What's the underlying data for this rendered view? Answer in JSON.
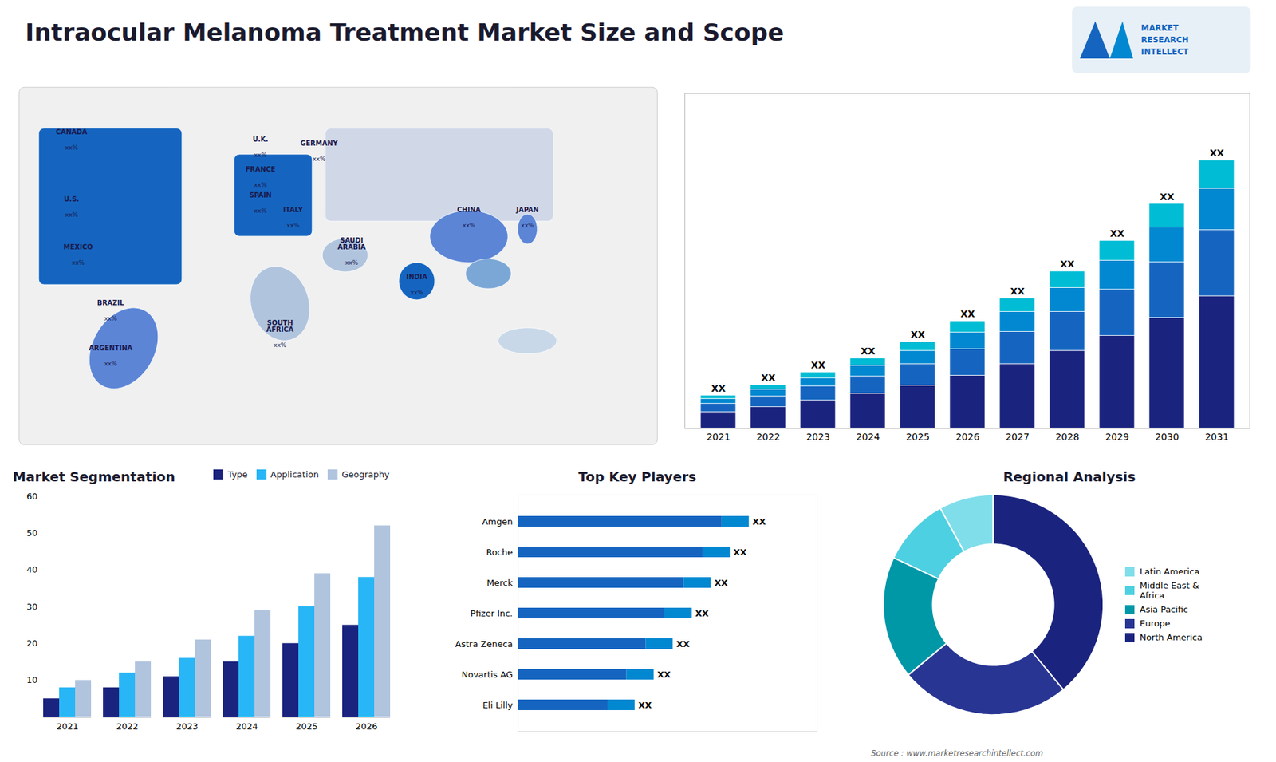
{
  "title": "Intraocular Melanoma Treatment Market Size and Scope",
  "logo_text": "MARKET\nRESEARCH\nINTELLECT",
  "source": "Source : www.marketresearchintellect.com",
  "chart_data": [
    {
      "type": "map",
      "categories": [
        "CANADA",
        "U.S.",
        "MEXICO",
        "BRAZIL",
        "ARGENTINA",
        "U.K.",
        "FRANCE",
        "SPAIN",
        "GERMANY",
        "ITALY",
        "SAUDI\nARABIA",
        "SOUTH\nAFRICA",
        "CHINA",
        "INDIA",
        "JAPAN"
      ],
      "value_labels": [
        "xx%",
        "xx%",
        "xx%",
        "xx%",
        "xx%",
        "xx%",
        "xx%",
        "xx%",
        "xx%",
        "xx%",
        "xx%",
        "xx%",
        "xx%",
        "xx%",
        "xx%"
      ]
    },
    {
      "type": "bar",
      "stacked": true,
      "categories": [
        "2021",
        "2022",
        "2023",
        "2024",
        "2025",
        "2026",
        "2027",
        "2028",
        "2029",
        "2030",
        "2031"
      ],
      "series": [
        {
          "color": "#1a237e",
          "values": [
            1.0,
            1.3,
            1.7,
            2.1,
            2.6,
            3.2,
            3.9,
            4.7,
            5.6,
            6.7,
            8.0
          ]
        },
        {
          "color": "#1565c0",
          "values": [
            0.5,
            0.65,
            0.85,
            1.05,
            1.3,
            1.6,
            1.95,
            2.35,
            2.8,
            3.35,
            4.0
          ]
        },
        {
          "color": "#0288d1",
          "values": [
            0.3,
            0.4,
            0.5,
            0.65,
            0.8,
            1.0,
            1.2,
            1.45,
            1.75,
            2.1,
            2.5
          ]
        },
        {
          "color": "#00bcd4",
          "values": [
            0.2,
            0.27,
            0.35,
            0.44,
            0.54,
            0.68,
            0.82,
            0.99,
            1.19,
            1.43,
            1.7
          ]
        }
      ],
      "value_labels": [
        "XX",
        "XX",
        "XX",
        "XX",
        "XX",
        "XX",
        "XX",
        "XX",
        "XX",
        "XX",
        "XX"
      ],
      "ylim": [
        0,
        20.25
      ],
      "tick_labels": "x"
    },
    {
      "type": "bar",
      "title": "Market Segmentation",
      "categories": [
        "2021",
        "2022",
        "2023",
        "2024",
        "2025",
        "2026"
      ],
      "series": [
        {
          "name": "Type",
          "color": "#1a237e",
          "values": [
            5,
            8,
            11,
            15,
            20,
            25
          ]
        },
        {
          "name": "Application",
          "color": "#29b6f6",
          "values": [
            8,
            12,
            16,
            22,
            30,
            38
          ]
        },
        {
          "name": "Geography",
          "color": "#b0c4de",
          "values": [
            10,
            15,
            21,
            29,
            39,
            52
          ]
        }
      ],
      "ylim": [
        0,
        60
      ],
      "yticks": [
        {
          "value": 0,
          "label": ""
        },
        10,
        20,
        30,
        40,
        50,
        60
      ],
      "legend": "upper right"
    },
    {
      "type": "bar",
      "title": "Top Key Players",
      "orientation": "horizontal",
      "stacked": true,
      "categories": [
        "Amgen",
        "Roche",
        "Merck",
        "Pfizer Inc.",
        "Astra Zeneca",
        "Novartis AG",
        "Eli Lilly"
      ],
      "series": [
        {
          "color": "#1565c0",
          "values": [
            0.75,
            0.68,
            0.61,
            0.54,
            0.47,
            0.4,
            0.33
          ]
        },
        {
          "color": "#0288d1",
          "values": [
            0.1,
            0.1,
            0.1,
            0.1,
            0.1,
            0.1,
            0.1
          ]
        }
      ],
      "value_labels": [
        "XX",
        "XX",
        "XX",
        "XX",
        "XX",
        "XX",
        "XX"
      ],
      "xlim": [
        0,
        1.1
      ],
      "tick_labels": "y"
    },
    {
      "type": "pie",
      "title": "Regional Analysis",
      "categories": [
        "Latin America",
        "Middle East &\nAfrica",
        "Asia Pacific",
        "Europe",
        "North America"
      ],
      "values": [
        8,
        10,
        18,
        25,
        39
      ],
      "colors": [
        "#80deea",
        "#4dd0e1",
        "#0097a7",
        "#283593",
        "#1a237e"
      ],
      "legend": "right"
    }
  ]
}
